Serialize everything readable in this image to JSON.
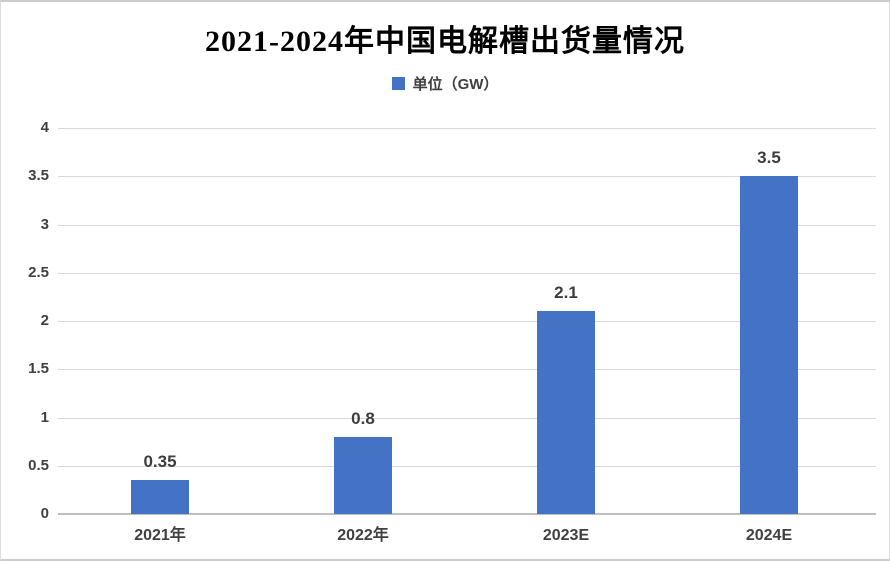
{
  "chart_data": {
    "type": "bar",
    "title": "2021-2024年中国电解槽出货量情况",
    "legend": [
      {
        "label": "单位（GW）",
        "color": "#4472C4"
      }
    ],
    "legend_position": "top",
    "categories": [
      "2021年",
      "2022年",
      "2023E",
      "2024E"
    ],
    "values": [
      0.35,
      0.8,
      2.1,
      3.5
    ],
    "value_labels": [
      "0.35",
      "0.8",
      "2.1",
      "3.5"
    ],
    "xlabel": "",
    "ylabel": "",
    "ylim": [
      0,
      4
    ],
    "ytick_step": 0.5,
    "yticks": [
      {
        "value": 4,
        "label": "4"
      },
      {
        "value": 3.5,
        "label": "3.5"
      },
      {
        "value": 3,
        "label": "3"
      },
      {
        "value": 2.5,
        "label": "2.5"
      },
      {
        "value": 2,
        "label": "2"
      },
      {
        "value": 1.5,
        "label": "1.5"
      },
      {
        "value": 1,
        "label": "1"
      },
      {
        "value": 0.5,
        "label": "0.5"
      },
      {
        "value": 0,
        "label": "0"
      }
    ],
    "grid": true,
    "colors": {
      "bar": "#4472C4",
      "gridline": "#D9D9D9",
      "baseline": "#BFBFBF",
      "tick_text": "#404040",
      "title_text": "#000000"
    }
  }
}
